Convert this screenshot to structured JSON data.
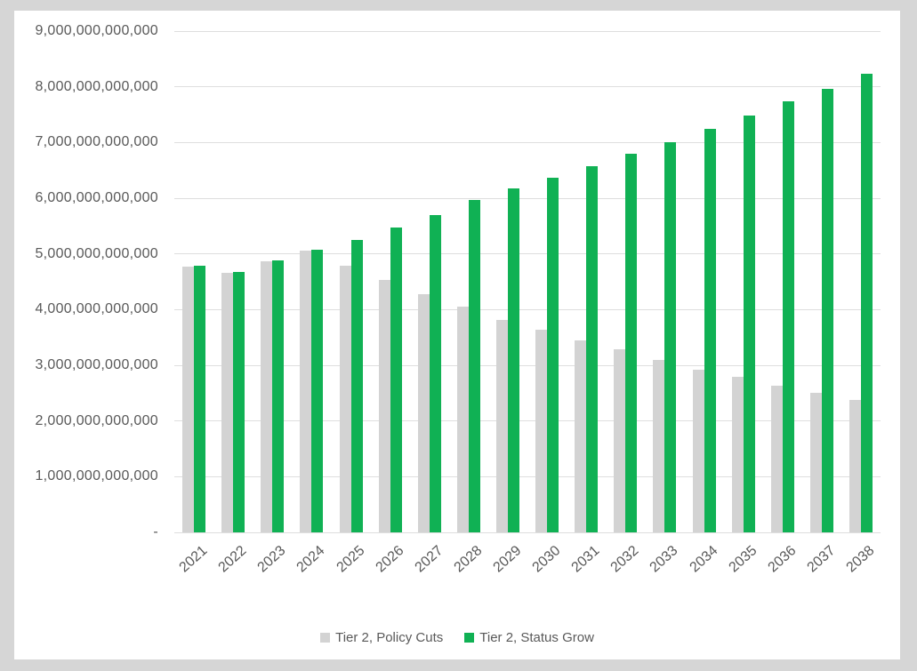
{
  "window": {
    "background_color": "#D6D6D6",
    "panel_color": "#FFFFFF",
    "text_color": "#595959",
    "gridline_color": "#DEDEDE"
  },
  "chart_data": {
    "type": "bar",
    "title": "",
    "xlabel": "",
    "ylabel": "",
    "categories": [
      "2021",
      "2022",
      "2023",
      "2024",
      "2025",
      "2026",
      "2027",
      "2028",
      "2029",
      "2030",
      "2031",
      "2032",
      "2033",
      "2034",
      "2035",
      "2036",
      "2037",
      "2038"
    ],
    "series": [
      {
        "name": "Tier 2, Policy Cuts",
        "color": "#D3D3D3",
        "values": [
          4770000000000,
          4660000000000,
          4870000000000,
          5060000000000,
          4790000000000,
          4530000000000,
          4280000000000,
          4050000000000,
          3820000000000,
          3640000000000,
          3450000000000,
          3280000000000,
          3090000000000,
          2920000000000,
          2790000000000,
          2640000000000,
          2510000000000,
          2380000000000
        ]
      },
      {
        "name": "Tier 2, Status Grow",
        "color": "#10B154",
        "values": [
          4780000000000,
          4680000000000,
          4890000000000,
          5070000000000,
          5250000000000,
          5480000000000,
          5700000000000,
          5970000000000,
          6170000000000,
          6360000000000,
          6570000000000,
          6790000000000,
          7010000000000,
          7240000000000,
          7480000000000,
          7740000000000,
          7970000000000,
          8240000000000
        ]
      }
    ],
    "ylim": [
      0,
      9000000000000
    ],
    "ytick_interval": 1000000000000,
    "ytick_labels": [
      "-",
      "1,000,000,000,000",
      "2,000,000,000,000",
      "3,000,000,000,000",
      "4,000,000,000,000",
      "5,000,000,000,000",
      "6,000,000,000,000",
      "7,000,000,000,000",
      "8,000,000,000,000",
      "9,000,000,000,000"
    ],
    "grid": "horizontal",
    "legend_position": "bottom"
  }
}
